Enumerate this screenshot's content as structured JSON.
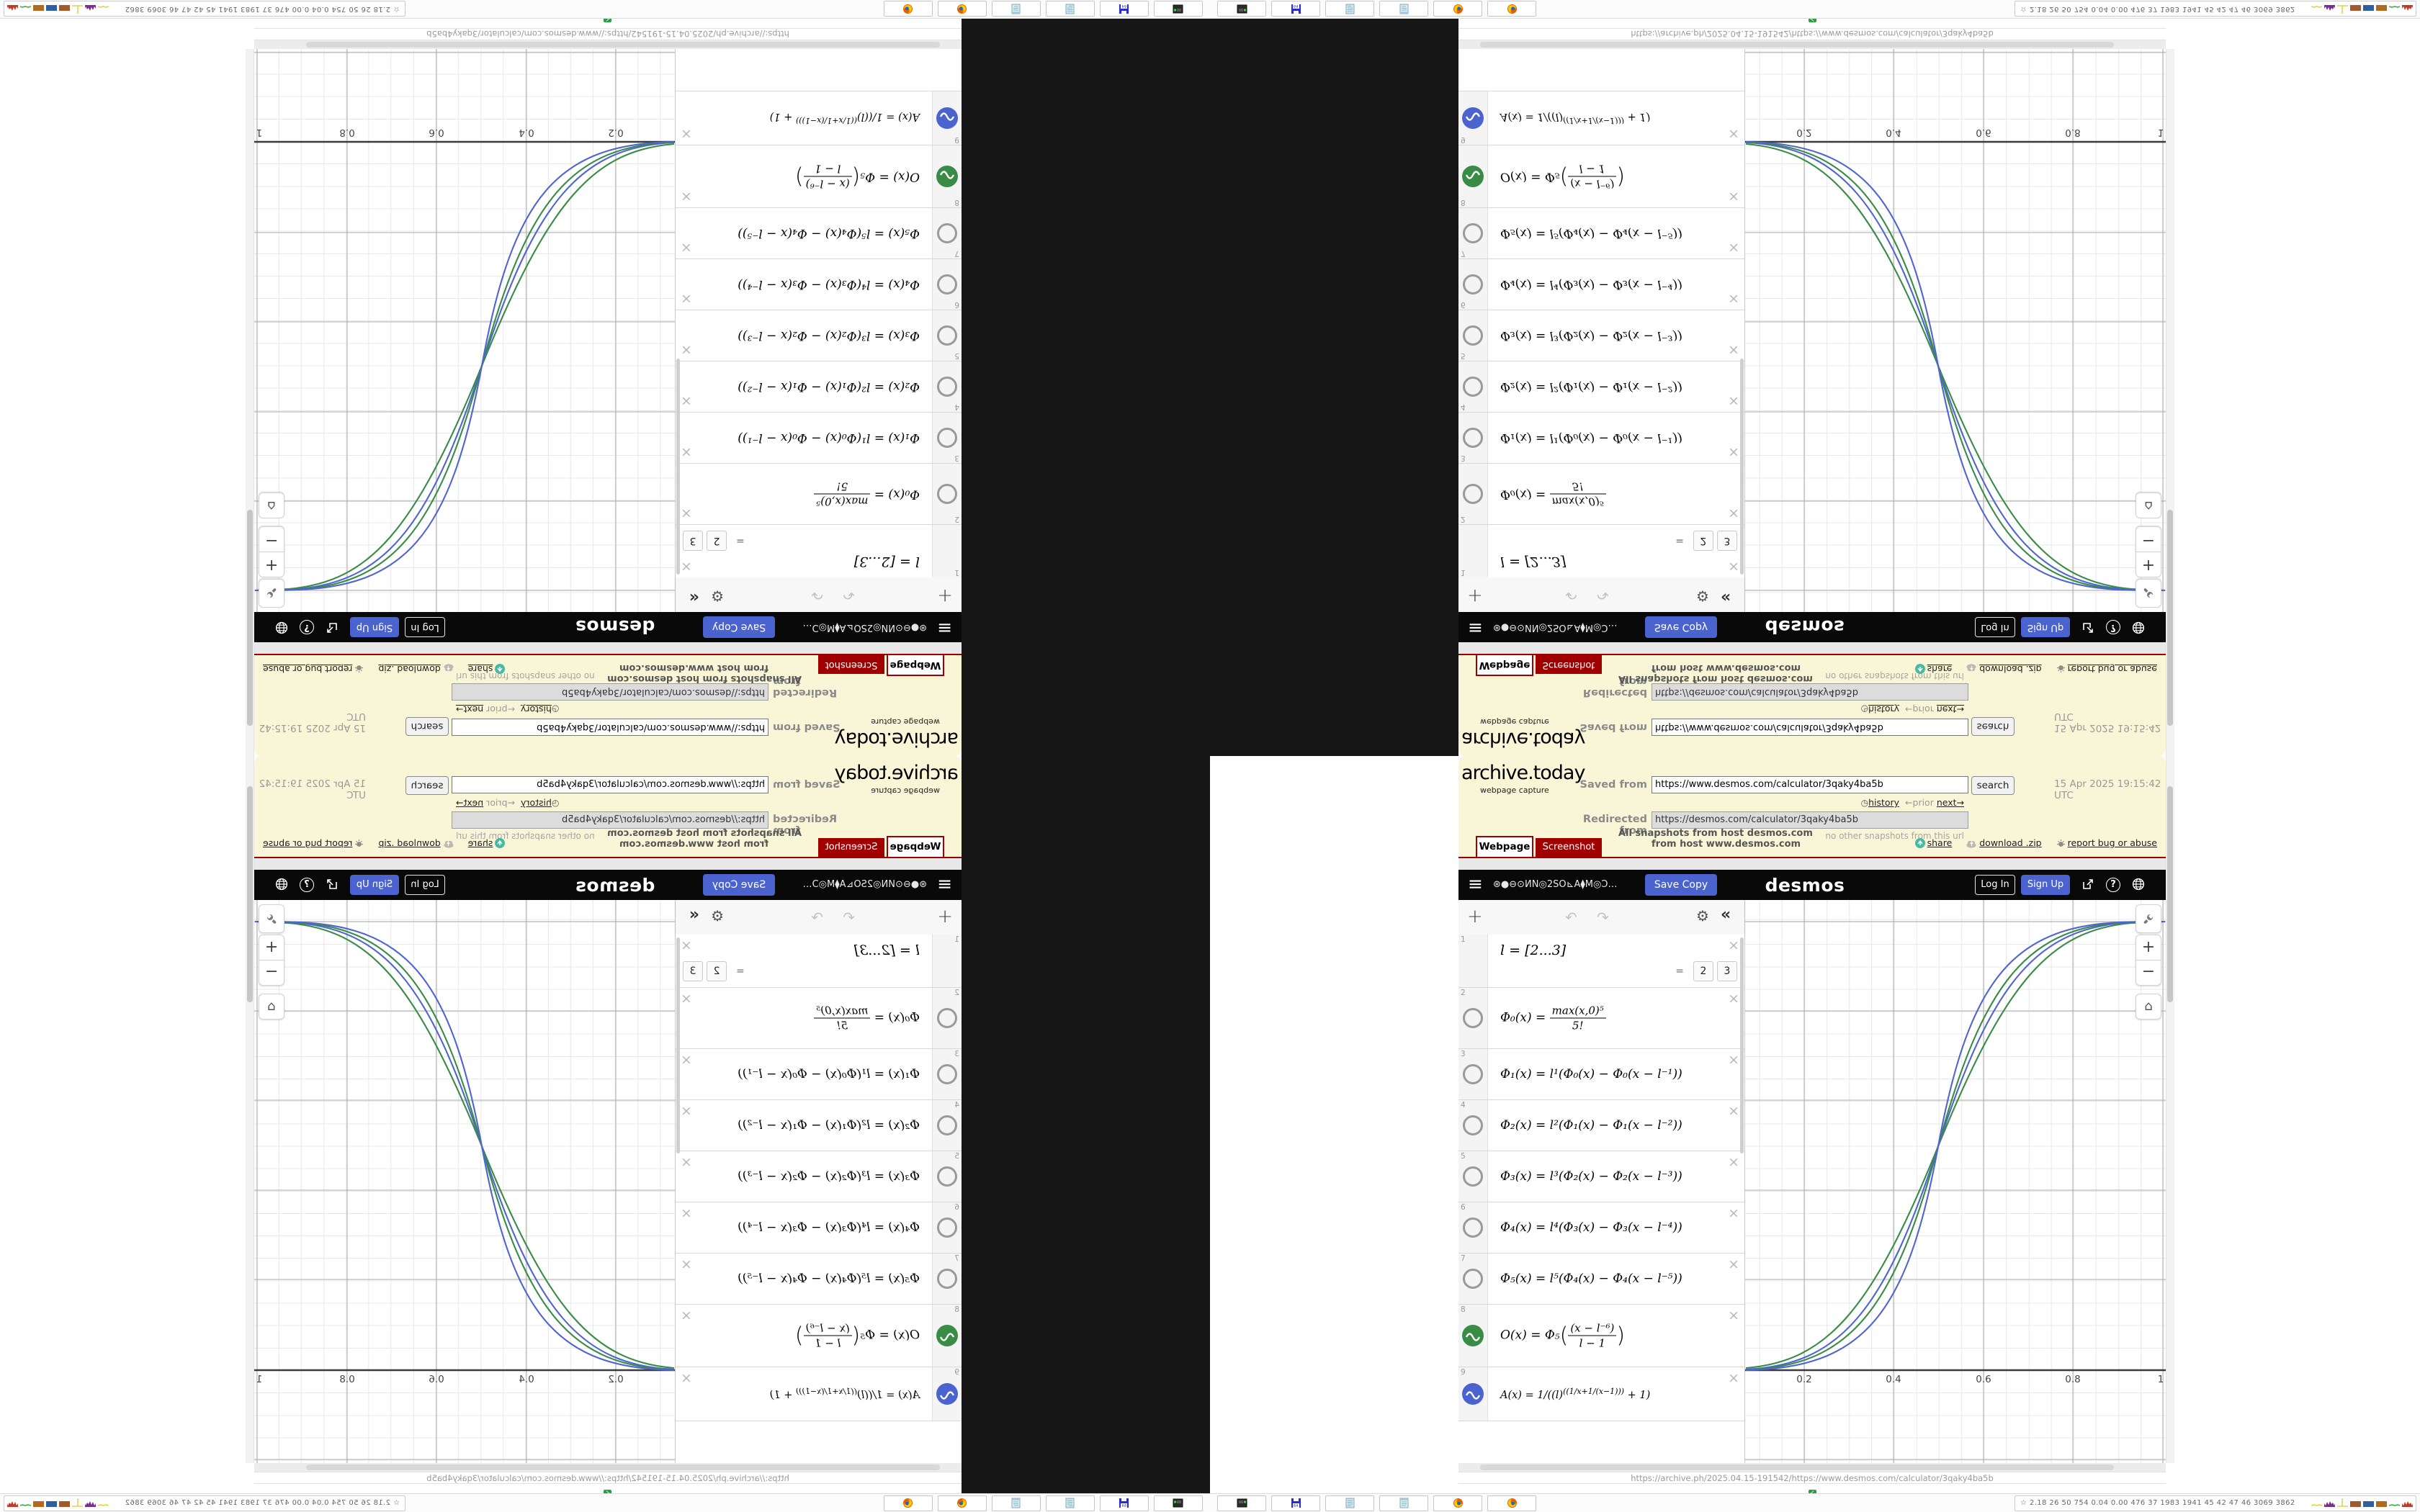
{
  "page": {
    "archive_header": {
      "logo": "archive.today",
      "tagline": "webpage capture",
      "saved_from_label": "Saved from",
      "saved_url": "https://www.desmos.com/calculator/3qaky4ba5b",
      "search_button": "search",
      "timestamp": "15 Apr 2025 19:15:42 UTC",
      "history_link": "history",
      "prior_link": "←prior",
      "next_link": "next→",
      "redirected_from_label": "Redirected from",
      "redirected_url": "https://desmos.com/calculator/3qaky4ba5b",
      "no_other": "no other snapshots from this url",
      "all_snapshots_line1": "All snapshots from host desmos.com",
      "all_snapshots_line2": "from host www.desmos.com",
      "tabs": [
        {
          "label": "Webpage",
          "active": true
        },
        {
          "label": "Screenshot",
          "active": false
        }
      ],
      "links": {
        "share": "share",
        "download": "download .zip",
        "report": "report bug or abuse"
      }
    },
    "desmos": {
      "title": "⊛●⊖⊙ИN◎2SO⊾Α⧫M◎Ɔ…",
      "save_copy": "Save Copy",
      "logo": "desmos",
      "log_in": "Log In",
      "sign_up": "Sign Up",
      "expressions": [
        {
          "index": "1",
          "icon": "none",
          "latex": "l = [2...3]",
          "chips": [
            "2",
            "3"
          ],
          "eq": "="
        },
        {
          "index": "2",
          "icon": "circle",
          "lhs": "Φ₀(x) = ",
          "num": "max(x,0)⁵",
          "den": "5!"
        },
        {
          "index": "3",
          "icon": "circle",
          "text": "Φ₁(x) = l¹(Φ₀(x) − Φ₀(x − l⁻¹))"
        },
        {
          "index": "4",
          "icon": "circle",
          "text": "Φ₂(x) = l²(Φ₁(x) − Φ₁(x − l⁻²))"
        },
        {
          "index": "5",
          "icon": "circle",
          "text": "Φ₃(x) = l³(Φ₂(x) − Φ₂(x − l⁻³))"
        },
        {
          "index": "6",
          "icon": "circle",
          "text": "Φ₄(x) = l⁴(Φ₃(x) − Φ₃(x − l⁻⁴))"
        },
        {
          "index": "7",
          "icon": "circle",
          "text": "Φ₅(x) = l⁵(Φ₄(x) − Φ₄(x − l⁻⁵))"
        },
        {
          "index": "8",
          "icon": "wave-green",
          "lhs": "O(x) = Φ₅",
          "num": "(x − l⁻⁶)",
          "den": "l − 1",
          "paren": true
        },
        {
          "index": "9",
          "icon": "wave-blue",
          "lhs": "A(x) = 1/((l)",
          "sup": "((1/x+1/(x−1)))",
          "rhs": " + 1)"
        }
      ],
      "graph": {
        "x_ticks": [
          "0.2",
          "0.4",
          "0.6",
          "0.8",
          "1"
        ],
        "x_range_visible": [
          0.07,
          1.01
        ],
        "y_range_visible": [
          -0.21,
          1.05
        ],
        "crossing_point": [
          0.5,
          0.5
        ],
        "curves": [
          {
            "name": "O(x) for l=2",
            "color": "#388c46"
          },
          {
            "name": "O(x) for l=3",
            "color": "#388c46"
          },
          {
            "name": "A(x) for l=2",
            "color": "#5064d2"
          },
          {
            "name": "A(x) for l=3",
            "color": "#5064d2"
          }
        ]
      }
    },
    "footer": {
      "snapshot_url": "https://archive.ph/2025.04.15-191542/https://www.desmos.com/calculator/3qaky4ba5b"
    }
  },
  "taskbar": {
    "buttons": [
      "kvm-app",
      "floppy64-app",
      "notepad-app",
      "notepad2-app",
      "firefox-app",
      "firefox2-app"
    ],
    "tray_star": "☆",
    "tray_numbers": "2.18  26  50  754 0.04 0.00 476  37  1983 1941 45  42  47  46  3069 3862",
    "sparks": [
      {
        "shape": "line",
        "color": "#e3d34a"
      },
      {
        "shape": "bars",
        "color": "#7b2d8b"
      },
      {
        "shape": "spike",
        "color": "#e3d34a"
      },
      {
        "shape": "block",
        "color": "#a05a2c"
      },
      {
        "shape": "block",
        "color": "#2e5fa3"
      },
      {
        "shape": "block",
        "color": "#b36a1d"
      },
      {
        "shape": "line",
        "color": "#3fae49"
      },
      {
        "shape": "bars",
        "color": "#c0392b"
      }
    ]
  }
}
